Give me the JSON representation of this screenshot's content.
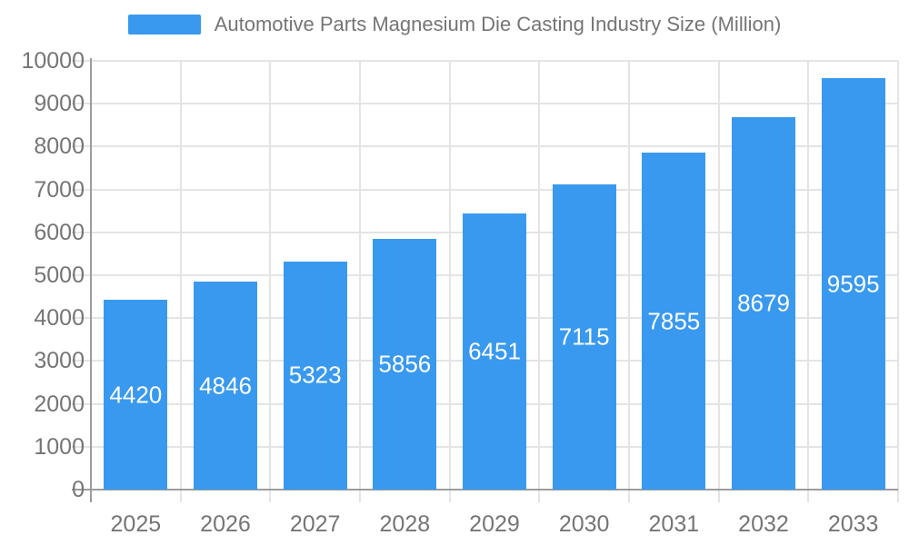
{
  "chart_data": {
    "type": "bar",
    "title": "Automotive Parts Magnesium Die Casting Industry Size (Million)",
    "categories": [
      "2025",
      "2026",
      "2027",
      "2028",
      "2029",
      "2030",
      "2031",
      "2032",
      "2033"
    ],
    "values": [
      4420,
      4846,
      5323,
      5856,
      6451,
      7115,
      7855,
      8679,
      9595
    ],
    "xlabel": "",
    "ylabel": "",
    "ylim": [
      0,
      10000
    ],
    "y_ticks": [
      0,
      1000,
      2000,
      3000,
      4000,
      5000,
      6000,
      7000,
      8000,
      9000,
      10000
    ],
    "grid": true,
    "legend_position": "top",
    "value_label_position": "inside-middle",
    "colors": {
      "bar": "#3999ee",
      "value_label": "#ffffff",
      "axis_text": "#757575",
      "legend_text": "#757575",
      "gridline": "#e4e4e4",
      "axis_line": "#9c9c9c",
      "background": "#ffffff"
    }
  }
}
